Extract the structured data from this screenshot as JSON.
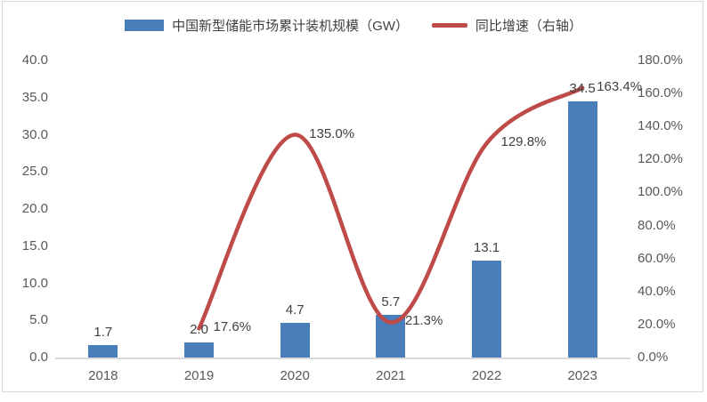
{
  "chart_data": {
    "type": "combo-bar-line",
    "categories": [
      "2018",
      "2019",
      "2020",
      "2021",
      "2022",
      "2023"
    ],
    "series": [
      {
        "name": "中国新型储能市场累计装机规模（GW）",
        "type": "bar",
        "axis": "left",
        "color": "#4a7ebb",
        "values": [
          1.7,
          2.0,
          4.7,
          5.7,
          13.1,
          34.5
        ],
        "labels": [
          "1.7",
          "2.0",
          "4.7",
          "5.7",
          "13.1",
          "34.5"
        ]
      },
      {
        "name": "同比增速（右轴）",
        "type": "line",
        "axis": "right",
        "color": "#be4b48",
        "values": [
          null,
          17.6,
          135.0,
          21.3,
          129.8,
          163.4
        ],
        "labels": [
          null,
          "17.6%",
          "135.0%",
          "21.3%",
          "129.8%",
          "163.4%"
        ]
      }
    ],
    "left_axis": {
      "min": 0,
      "max": 40,
      "step": 5,
      "ticks": [
        "40.0",
        "35.0",
        "30.0",
        "25.0",
        "20.0",
        "15.0",
        "10.0",
        "5.0",
        "0.0"
      ]
    },
    "right_axis": {
      "min": 0,
      "max": 180,
      "step": 20,
      "ticks": [
        "180.0%",
        "160.0%",
        "140.0%",
        "120.0%",
        "100.0%",
        "80.0%",
        "60.0%",
        "40.0%",
        "20.0%",
        "0.0%"
      ]
    },
    "grid": false,
    "legend_position": "top",
    "background": "#ffffff",
    "border_color": "#d9d9d9"
  }
}
